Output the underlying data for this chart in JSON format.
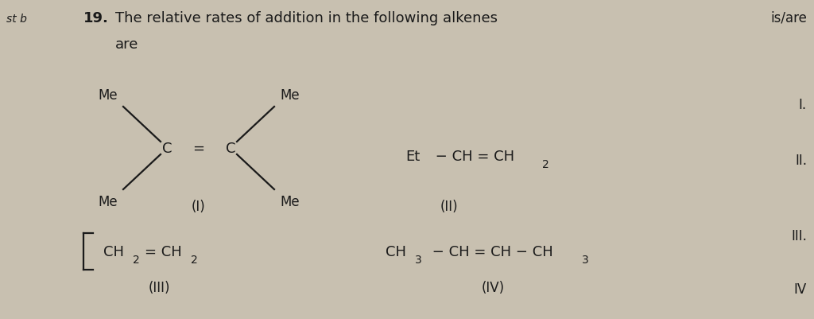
{
  "title_number": "19.",
  "title_line1": "The relative rates of addition in the following alkenes",
  "title_line2": "are",
  "right_label": "is/are",
  "background_color": "#c8c0b0",
  "text_color": "#1a1a1a",
  "compound_I_label": "(I)",
  "compound_II_label": "(II)",
  "compound_III_label": "(III)",
  "compound_IV_label": "(IV)",
  "roman_I": "I.",
  "roman_II": "II.",
  "roman_III": "III.",
  "roman_IV": "IV",
  "figsize": [
    10.24,
    4.02
  ],
  "dpi": 100
}
